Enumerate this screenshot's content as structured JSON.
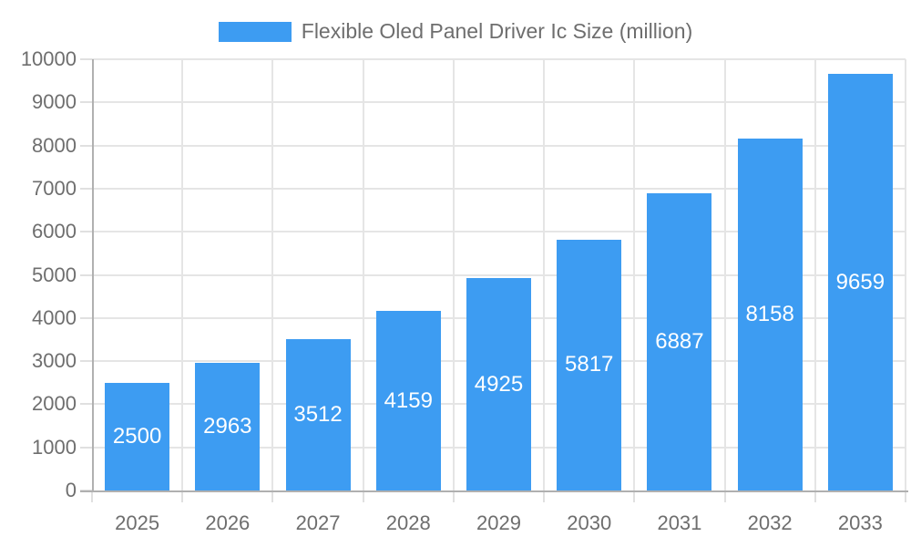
{
  "legend": {
    "label": "Flexible Oled Panel Driver Ic Size (million)"
  },
  "colors": {
    "background": "#FFFFFF",
    "bar": "#3D9CF2",
    "grid": "#E5E5E5",
    "tick": "#E0E0E0",
    "axis": "#B0B0B0",
    "tick_label": "#6E6E6E",
    "value_label": "#FFFFFF"
  },
  "chart_data": {
    "type": "bar",
    "title": "Flexible Oled Panel Driver Ic Size (million)",
    "categories": [
      "2025",
      "2026",
      "2027",
      "2028",
      "2029",
      "2030",
      "2031",
      "2032",
      "2033"
    ],
    "values": [
      2500,
      2963,
      3512,
      4159,
      4925,
      5817,
      6887,
      8158,
      9659
    ],
    "xlabel": "",
    "ylabel": "",
    "ylim": [
      0,
      10000
    ],
    "ytick_step": 1000,
    "yticks": [
      0,
      1000,
      2000,
      3000,
      4000,
      5000,
      6000,
      7000,
      8000,
      9000,
      10000
    ],
    "grid": true,
    "legend_position": "top",
    "value_label_position": "inside-center"
  }
}
